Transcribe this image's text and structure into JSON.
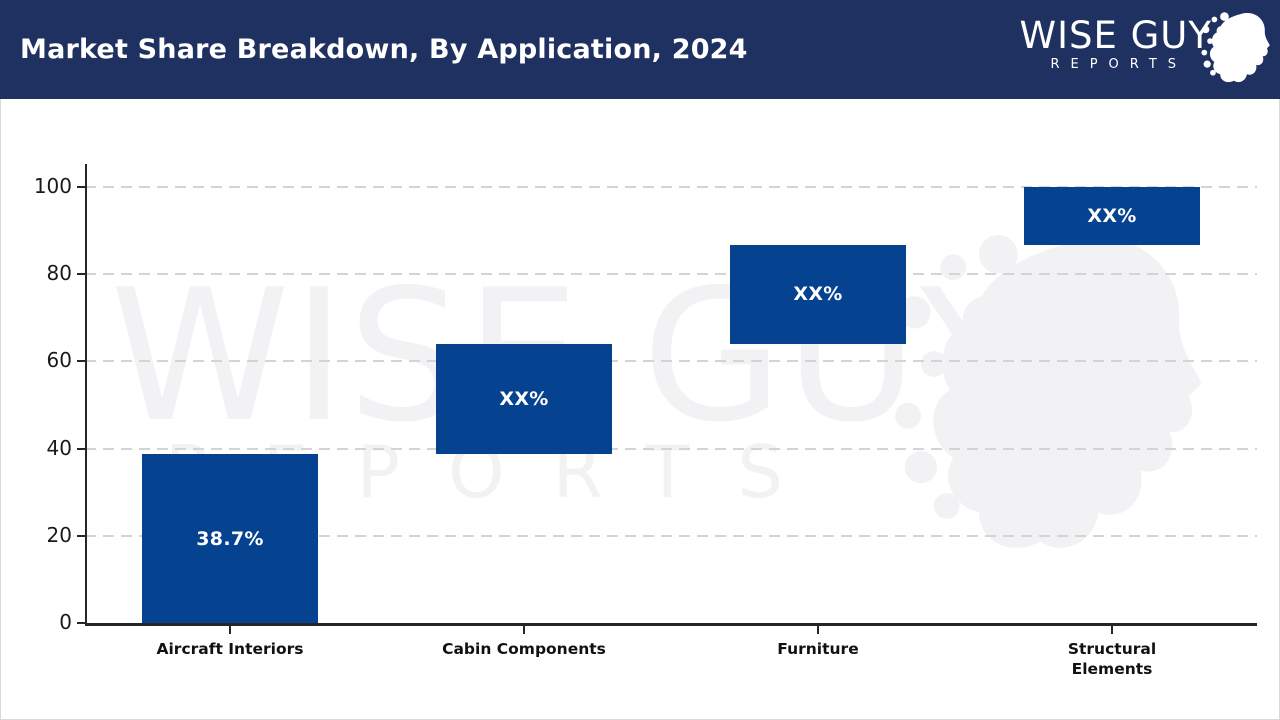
{
  "header": {
    "title": "Market Share Breakdown, By Application, 2024",
    "logo": {
      "line1": "WISE GUY",
      "line2": "REPORTS"
    }
  },
  "watermark": {
    "line1": "WISE GUY",
    "line2": "REPORTS"
  },
  "colors": {
    "header_bg": "#1f3160",
    "bar_blue": "#05428f",
    "grid_gray": "#d4d4d4",
    "axis_black": "#262626",
    "watermark_gray": "#f2f2f5",
    "label_white": "#ffffff"
  },
  "chart_data": {
    "type": "bar",
    "subtype": "waterfall",
    "title": "Market Share Breakdown, By Application, 2024",
    "categories": [
      "Aircraft Interiors",
      "Cabin Components",
      "Furniture",
      "Structural Elements"
    ],
    "segments": [
      {
        "category": "Aircraft Interiors",
        "start": 0,
        "end": 38.7,
        "label": "38.7%"
      },
      {
        "category": "Cabin Components",
        "start": 38.7,
        "end": 64.0,
        "label": "XX%"
      },
      {
        "category": "Furniture",
        "start": 64.0,
        "end": 86.8,
        "label": "XX%"
      },
      {
        "category": "Structural Elements",
        "start": 86.8,
        "end": 100,
        "label": "XX%"
      }
    ],
    "yticks": [
      0,
      20,
      40,
      60,
      80,
      100
    ],
    "ylim": [
      0,
      100
    ],
    "xlabel": "",
    "ylabel": "",
    "grid": "horizontal-dashed",
    "legend": "none",
    "bar_color": "#05428f"
  }
}
